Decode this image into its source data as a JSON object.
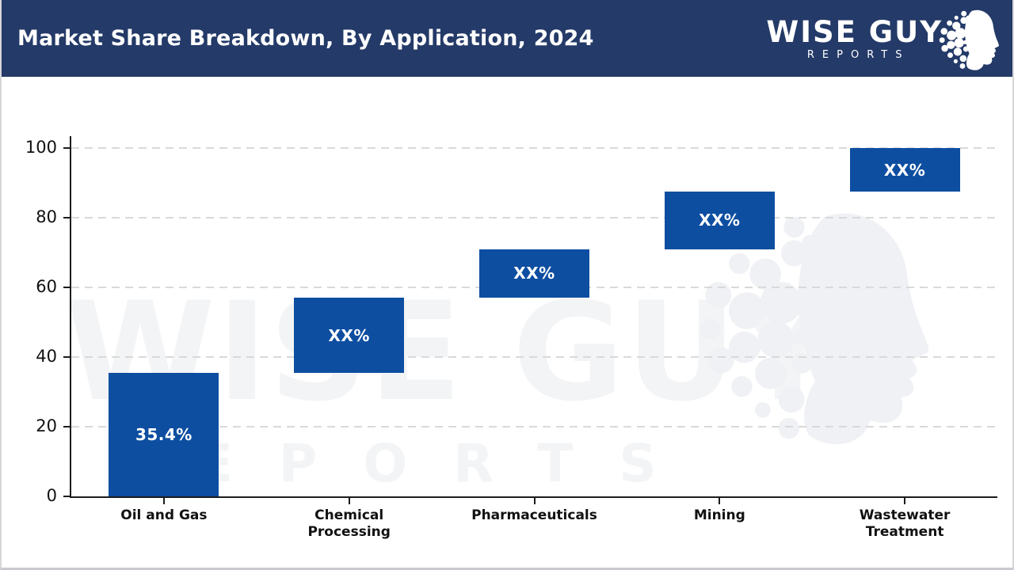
{
  "header": {
    "title": "Market Share Breakdown, By Application, 2024",
    "logo": {
      "line1": "WISE GUY",
      "line2": "REPORTS"
    }
  },
  "watermark": {
    "line1": "WISE GUY",
    "line2": "REPORTS"
  },
  "colors": {
    "header_bg": "#243a68",
    "bar": "#0d4ea1",
    "grid": "#d9d9d9",
    "axis": "#1c1c1c",
    "bar_label": "#ffffff"
  },
  "chart_data": {
    "type": "bar",
    "subtype": "waterfall",
    "title": "Market Share Breakdown, By Application, 2024",
    "categories": [
      "Oil and Gas",
      "Chemical\nProcessing",
      "Pharmaceuticals",
      "Mining",
      "Wastewater\nTreatment"
    ],
    "segments": [
      {
        "category": "Oil and Gas",
        "start": 0,
        "end": 35.4,
        "label": "35.4%"
      },
      {
        "category": "Chemical Processing",
        "start": 35.4,
        "end": 57,
        "label": "XX%"
      },
      {
        "category": "Pharmaceuticals",
        "start": 57,
        "end": 71,
        "label": "XX%"
      },
      {
        "category": "Mining",
        "start": 71,
        "end": 87.5,
        "label": "XX%"
      },
      {
        "category": "Wastewater Treatment",
        "start": 87.5,
        "end": 100,
        "label": "XX%"
      }
    ],
    "yticks": [
      0,
      20,
      40,
      60,
      80,
      100
    ],
    "ylim": [
      0,
      100
    ],
    "xlabel": "",
    "ylabel": "",
    "grid": "horizontal-dashed",
    "legend": "none"
  }
}
